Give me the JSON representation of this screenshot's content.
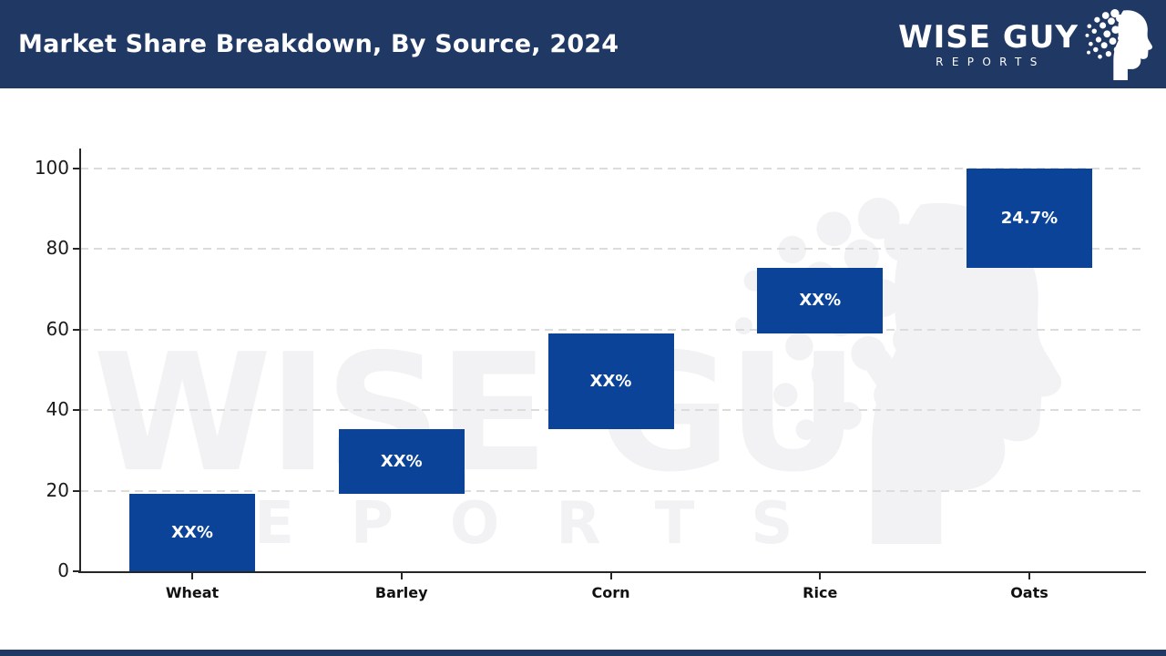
{
  "header": {
    "title": "Market Share Breakdown, By Source, 2024",
    "logo": {
      "line1": "WISE GUY",
      "line2": "REPORTS"
    }
  },
  "watermark": {
    "line1": "WISE GUY",
    "line2": "REPORTS"
  },
  "chart_data": {
    "type": "bar",
    "subtype": "floating-waterfall",
    "title": "Market Share Breakdown, By Source, 2024",
    "categories": [
      "Wheat",
      "Barley",
      "Corn",
      "Rice",
      "Oats"
    ],
    "bars": [
      {
        "category": "Wheat",
        "start": 0,
        "end": 19.3,
        "label": "XX%"
      },
      {
        "category": "Barley",
        "start": 19.3,
        "end": 35.4,
        "label": "XX%"
      },
      {
        "category": "Corn",
        "start": 35.4,
        "end": 59.1,
        "label": "XX%"
      },
      {
        "category": "Rice",
        "start": 59.1,
        "end": 75.3,
        "label": "XX%"
      },
      {
        "category": "Oats",
        "start": 75.3,
        "end": 100,
        "label": "24.7%"
      }
    ],
    "yticks": [
      0,
      20,
      40,
      60,
      80,
      100
    ],
    "ylim": [
      0,
      104.5
    ],
    "xlabel": "",
    "ylabel": "",
    "grid": "horizontal-dashed",
    "legend": "none"
  },
  "colors": {
    "header_bg": "#203864",
    "footer_bg": "#203864",
    "bar": "#0b4398",
    "bar_label": "#ffffff",
    "grid": "#dcdcdc",
    "axis": "#262626",
    "watermark": "#f2f2f4"
  }
}
